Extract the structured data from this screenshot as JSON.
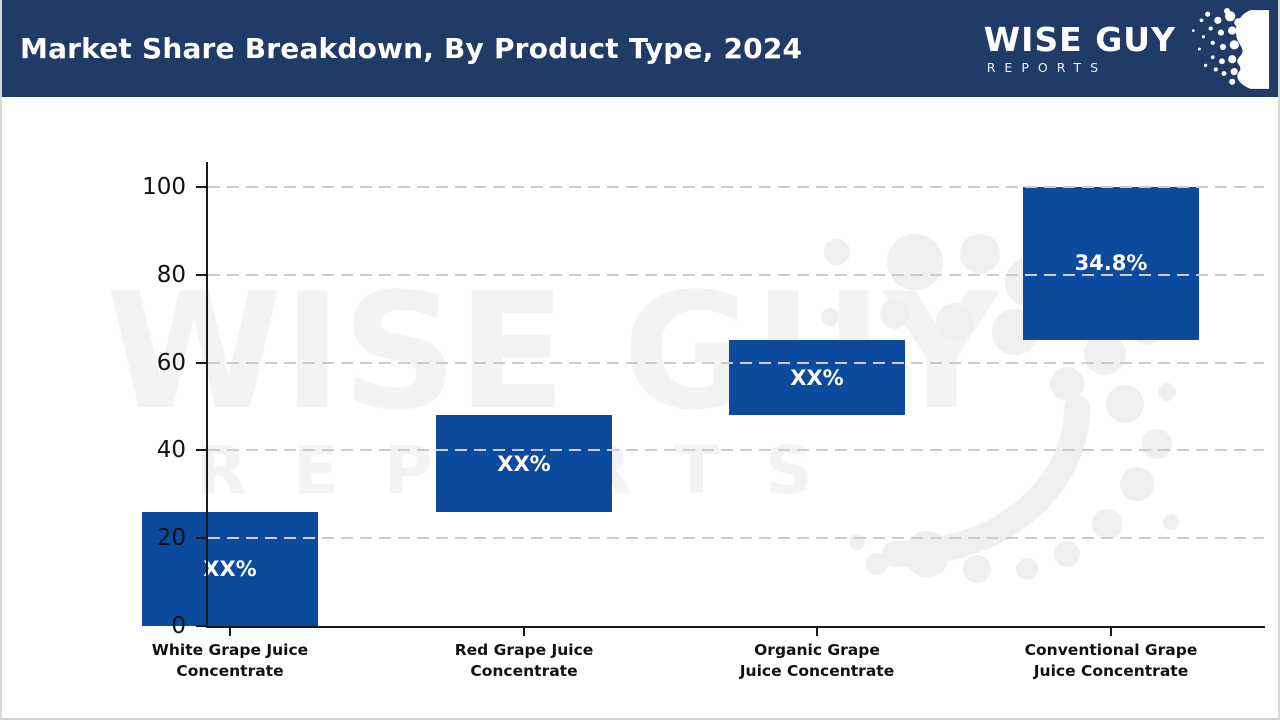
{
  "header": {
    "title": "Market Share Breakdown, By Product Type, 2024",
    "logo": {
      "wordmark": "WISE GUY",
      "subtext": "REPORTS"
    }
  },
  "watermark": {
    "wordmark": "WISE GUY",
    "subtext": "REPORTS"
  },
  "colors": {
    "header_bg": "#213a66",
    "bar_blue": "#0b4a9c",
    "grid_gray": "#cccccc",
    "axis_black": "#1a1a1a",
    "watermark_gray": "#f3f3f5"
  },
  "chart_data": {
    "type": "bar",
    "variant": "floating_range_bars",
    "title": "Market Share Breakdown, By Product Type, 2024",
    "categories": [
      "White Grape Juice\nConcentrate",
      "Red Grape Juice\nConcentrate",
      "Organic Grape\nJuice Concentrate",
      "Conventional Grape\nJuice Concentrate"
    ],
    "series": [
      {
        "name": "Market share",
        "ranges": [
          [
            0,
            26
          ],
          [
            26,
            48
          ],
          [
            48,
            65.2
          ],
          [
            65.2,
            100
          ]
        ],
        "segment_sizes": [
          26,
          22,
          17.2,
          34.8
        ],
        "labels": [
          "XX%",
          "XX%",
          "XX%",
          "34.8%"
        ]
      }
    ],
    "xlabel": "",
    "ylabel": "",
    "ylim": [
      0,
      100
    ],
    "yticks": [
      0,
      20,
      40,
      60,
      80,
      100
    ],
    "grid": "horizontal-dashed",
    "legend": "none",
    "bar_color": "#0b4a9c",
    "bar_label_color": "#ffffff"
  }
}
